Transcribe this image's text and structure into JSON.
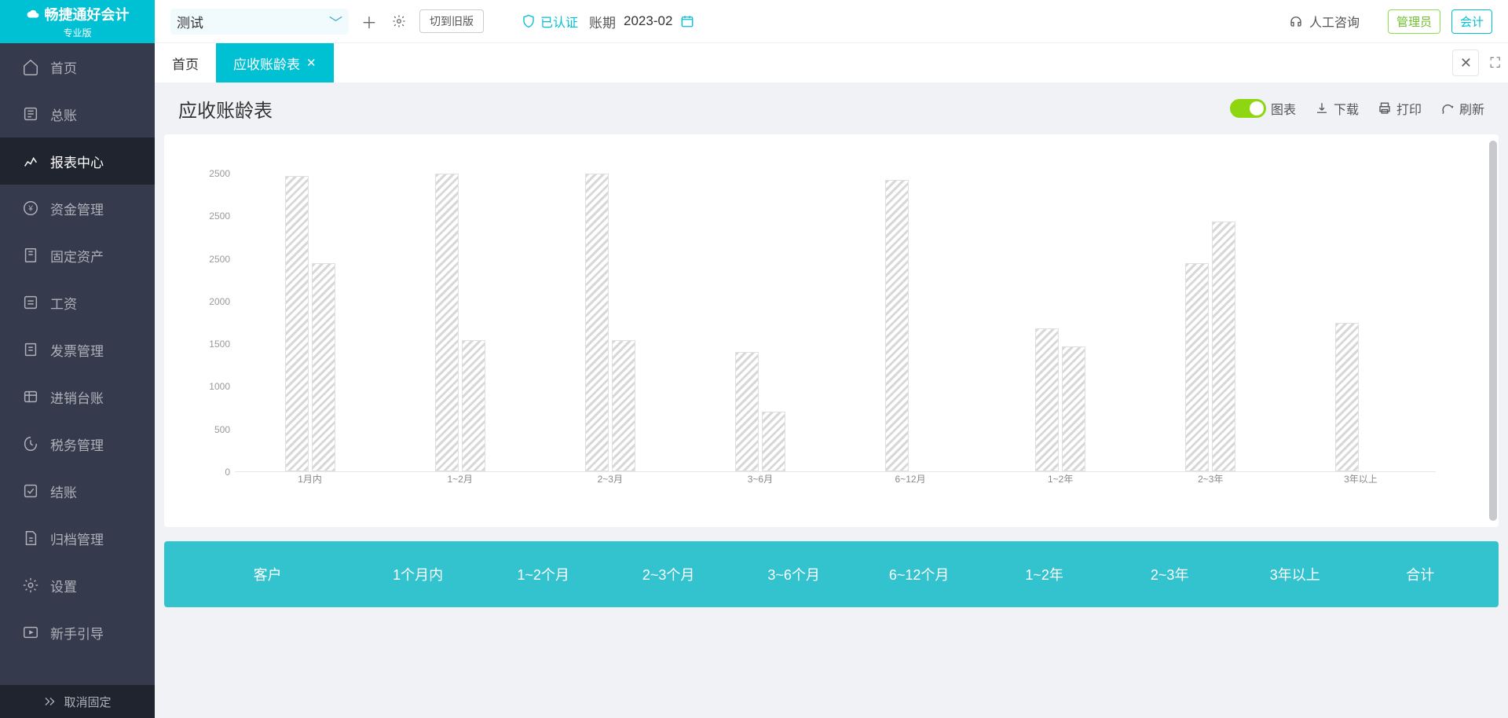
{
  "brand": {
    "name": "畅捷通好会计",
    "edition": "专业版"
  },
  "sidebar": {
    "items": [
      {
        "label": "首页"
      },
      {
        "label": "总账"
      },
      {
        "label": "报表中心"
      },
      {
        "label": "资金管理"
      },
      {
        "label": "固定资产"
      },
      {
        "label": "工资"
      },
      {
        "label": "发票管理"
      },
      {
        "label": "进销台账"
      },
      {
        "label": "税务管理"
      },
      {
        "label": "结账"
      },
      {
        "label": "归档管理"
      },
      {
        "label": "设置"
      },
      {
        "label": "新手引导"
      }
    ],
    "active_index": 2,
    "footer": "取消固定"
  },
  "topbar": {
    "company": "测试",
    "switch_label": "切到旧版",
    "verified": "已认证",
    "period_label": "账期",
    "period_value": "2023-02",
    "consult": "人工咨询",
    "role_admin": "管理员",
    "role_acc": "会计"
  },
  "tabs": {
    "home": "首页",
    "active": "应收账龄表"
  },
  "page": {
    "title": "应收账龄表",
    "chart_label": "图表",
    "download": "下载",
    "print": "打印",
    "refresh": "刷新"
  },
  "chart": {
    "type": "bar",
    "ylim": [
      0,
      2500
    ],
    "ytick_step": 500,
    "yticks": [
      0,
      500,
      1000,
      1500,
      2000,
      2500,
      2500,
      2500
    ],
    "categories": [
      "1月内",
      "1~2月",
      "2~3月",
      "3~6月",
      "6~12月",
      "1~2年",
      "2~3年",
      "3年以上"
    ],
    "series": [
      {
        "name": "s1",
        "values": [
          2480,
          2500,
          2500,
          1000,
          2450,
          1200,
          1750,
          1250
        ]
      },
      {
        "name": "s2",
        "values": [
          1750,
          1100,
          1100,
          500,
          0,
          1050,
          2100,
          0
        ]
      }
    ],
    "bar_fill": "#d8d8d8",
    "grid_color": "#e6e6e6",
    "label_color": "#888888",
    "tick_fontsize": 12
  },
  "table": {
    "columns": [
      "客户",
      "1个月内",
      "1~2个月",
      "2~3个月",
      "3~6个月",
      "6~12个月",
      "1~2年",
      "2~3年",
      "3年以上",
      "合计"
    ],
    "header_bg": "#33c3cf",
    "header_color": "#ffffff"
  }
}
